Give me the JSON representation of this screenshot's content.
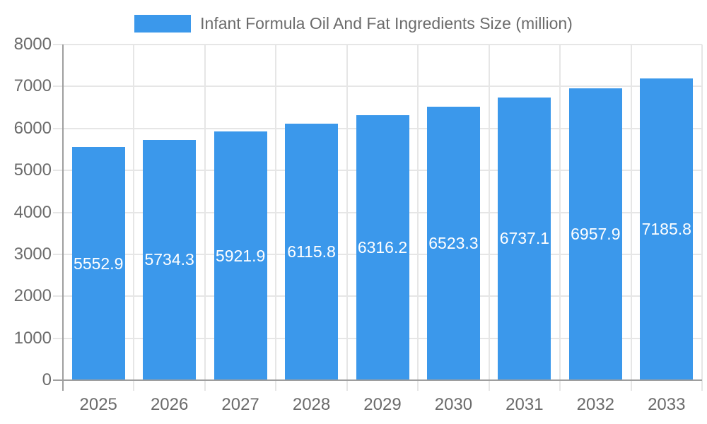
{
  "legend": {
    "label": "Infant Formula Oil And Fat Ingredients Size (million)"
  },
  "chart_data": {
    "type": "bar",
    "title": "Infant Formula Oil And Fat Ingredients Size (million)",
    "categories": [
      "2025",
      "2026",
      "2027",
      "2028",
      "2029",
      "2030",
      "2031",
      "2032",
      "2033"
    ],
    "values": [
      5552.9,
      5734.3,
      5921.9,
      6115.8,
      6316.2,
      6523.3,
      6737.1,
      6957.9,
      7185.8
    ],
    "xlabel": "",
    "ylabel": "",
    "ylim": [
      0,
      8000
    ],
    "ytick_step": 1000,
    "grid": true,
    "legend_position": "top-center",
    "colors": {
      "bar": "#3B98EB",
      "value_label": "#ffffff",
      "axis_text": "#6b6b6b",
      "gridline": "#e6e6e6",
      "axis_line": "#9e9e9e"
    }
  }
}
